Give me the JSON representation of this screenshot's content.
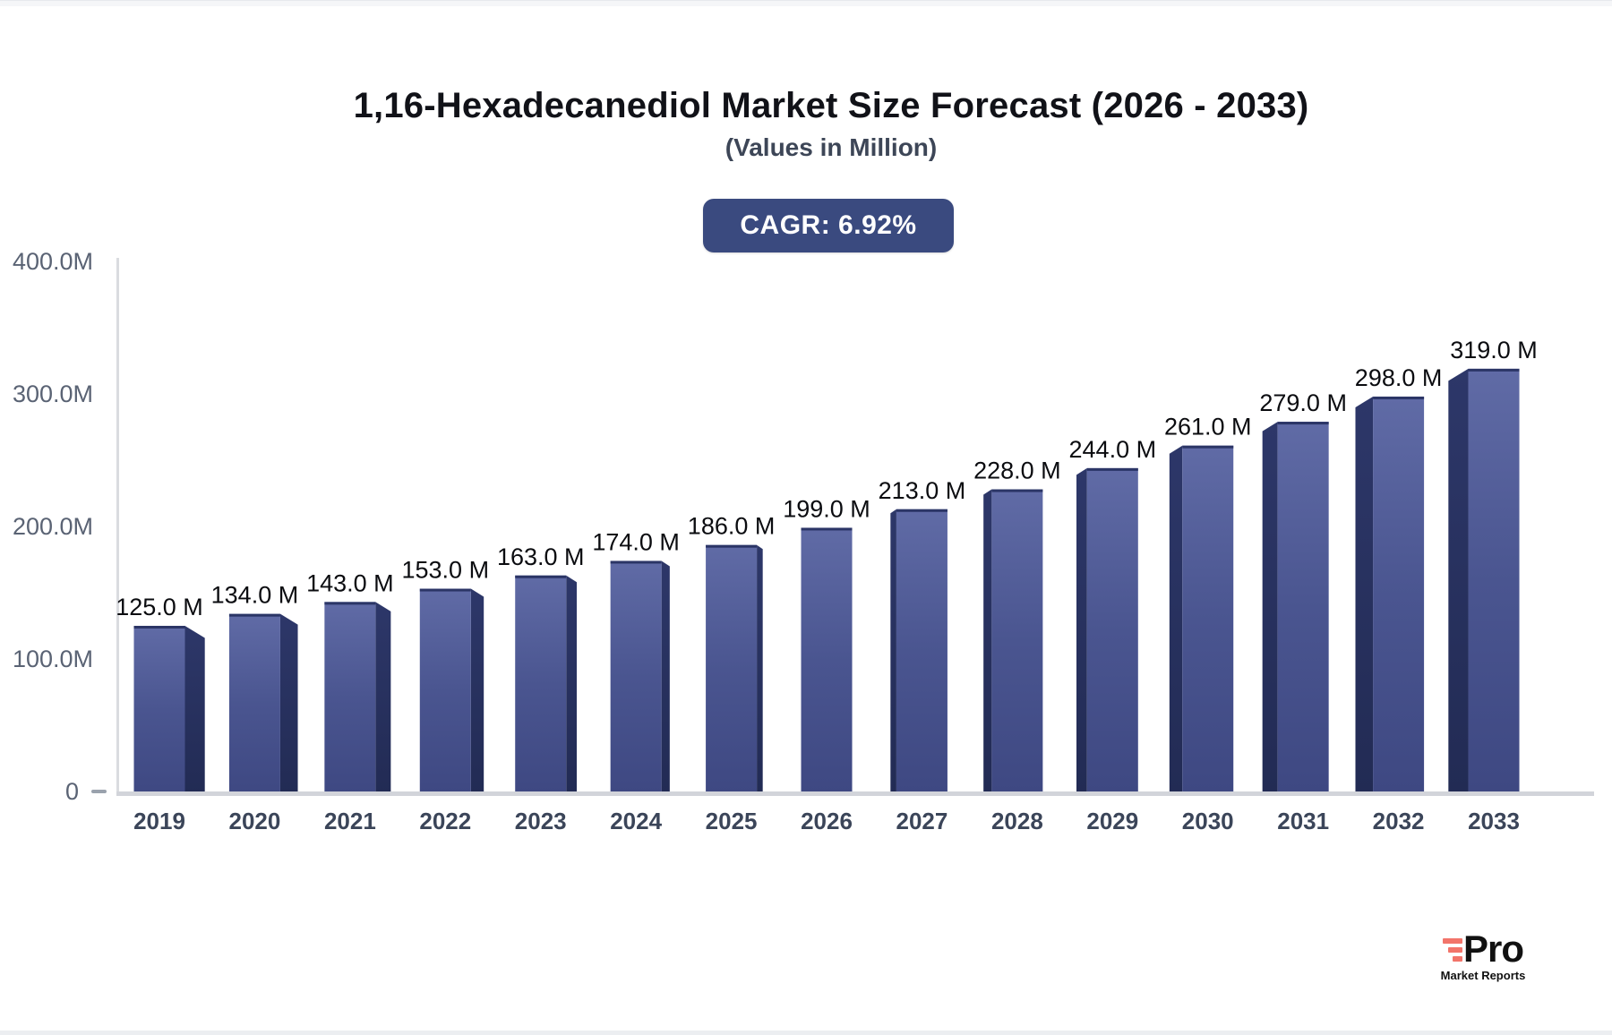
{
  "header": {
    "title": "1,16-Hexadecanediol Market Size Forecast (2026 - 2033)",
    "subtitle": "(Values in Million)",
    "cagr_badge": "CAGR: 6.92%"
  },
  "chart_data": {
    "type": "bar",
    "title": "1,16-Hexadecanediol Market Size Forecast (2026 - 2033)",
    "subtitle": "(Values in Million)",
    "unit": "Million",
    "cagr": "6.92%",
    "categories": [
      "2019",
      "2020",
      "2021",
      "2022",
      "2023",
      "2024",
      "2025",
      "2026",
      "2027",
      "2028",
      "2029",
      "2030",
      "2031",
      "2032",
      "2033"
    ],
    "values": [
      125.0,
      134.0,
      143.0,
      153.0,
      163.0,
      174.0,
      186.0,
      199.0,
      213.0,
      228.0,
      244.0,
      261.0,
      279.0,
      298.0,
      319.0
    ],
    "value_label_suffix": " M",
    "xlabel": "",
    "ylabel": "",
    "ylim": [
      0,
      400
    ],
    "grid": false,
    "legend": false,
    "yticks": [
      {
        "label": "400.0M",
        "value": 400
      },
      {
        "label": "300.0M",
        "value": 300
      },
      {
        "label": "200.0M",
        "value": 200
      },
      {
        "label": "100.0M",
        "value": 100
      },
      {
        "label": "0",
        "value": 0
      }
    ]
  },
  "colors": {
    "title": "#111218",
    "subtitle": "#3d4657",
    "badge_bg": "#3a4a7f",
    "badge_text": "#ffffff",
    "bar_front_top": "#606ba6",
    "bar_front_mid": "#4a5590",
    "bar_front_bottom": "#3e4882",
    "bar_side_top": "#2d3769",
    "bar_side_bottom": "#222b54",
    "bar_top_edge": "#2b3566",
    "axis_line": "#dadce0",
    "baseline": "#d2d4da",
    "zero_tick": "#9aa2ad",
    "ytick_label": "#5a6374",
    "xtick_label": "#3b4559",
    "value_label": "#0b0c10",
    "logo_accent": "#f2746a",
    "logo_text": "#111111"
  },
  "logo": {
    "brand": "Pro",
    "subtitle": "Market Reports"
  }
}
